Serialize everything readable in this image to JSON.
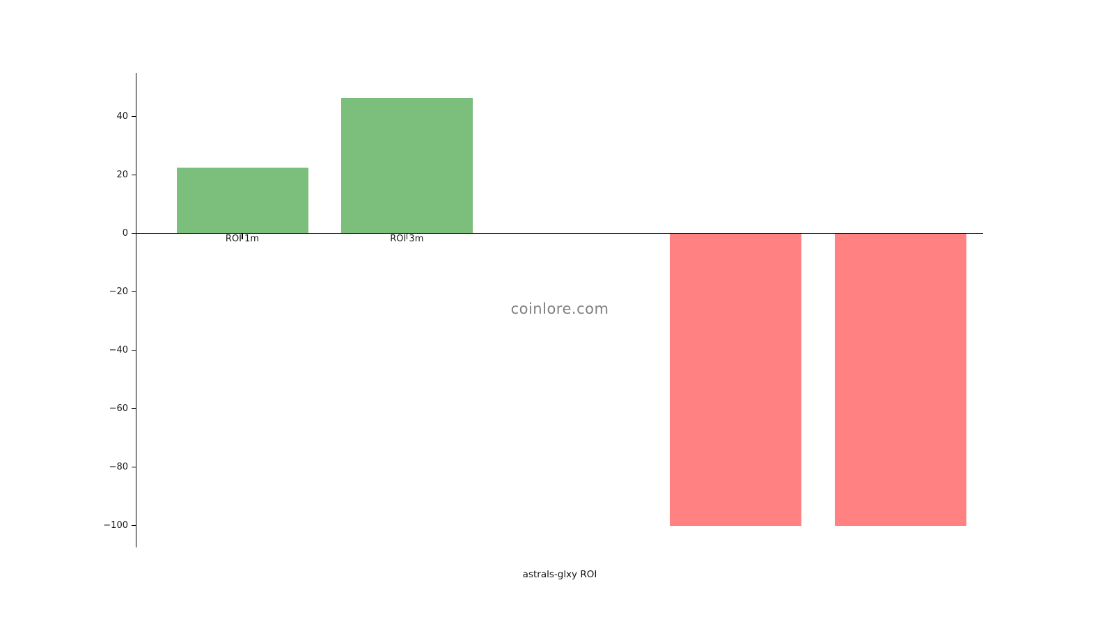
{
  "chart_data": {
    "type": "bar",
    "title": "astrals-glxy ROI",
    "watermark": "coinlore.com",
    "categories": [
      "ROI 1m",
      "ROI 3m",
      "",
      "",
      ""
    ],
    "values": [
      22.5,
      46.3,
      0,
      -100,
      -100
    ],
    "bar_colors": [
      "#7cbe7c",
      "#7cbe7c",
      "none",
      "#ff8181",
      "#ff8181"
    ],
    "positive_color": "#7cbe7c",
    "negative_color": "#ff8181",
    "yticks": [
      40,
      20,
      0,
      -20,
      -40,
      -60,
      -80,
      -100
    ],
    "ytick_labels": [
      "40",
      "20",
      "0",
      "−20",
      "−40",
      "−60",
      "−80",
      "−100"
    ],
    "ylim": [
      -107.5,
      54.8
    ],
    "xlabel": "",
    "ylabel": "",
    "grid": false,
    "legend_position": "none",
    "axis_color": "#000000",
    "watermark_color": "#7f7f7f",
    "title_color": "#111111"
  }
}
